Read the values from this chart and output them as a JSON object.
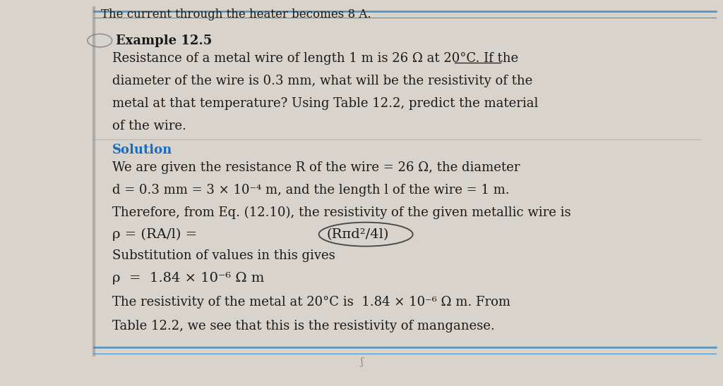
{
  "background_color": "#d8d4cc",
  "top_text": "The current through the heater becomes 8 A.",
  "header_title": "Example 12.5",
  "example_text_lines": [
    "Resistance of a metal wire of length 1 m is 26 Ω at 20°C. If the",
    "diameter of the wire is 0.3 mm, what will be the resistivity of the",
    "metal at that temperature? Using Table 12.2, predict the material",
    "of the wire."
  ],
  "solution_label": "Solution",
  "solution_color": "#1a6bbf",
  "solution_lines": [
    "We are given the resistance R of the wire = 26 Ω, the diameter",
    "d = 0.3 mm = 3 × 10⁻⁴ m, and the length l of the wire = 1 m.",
    "Therefore, from Eq. (12.10), the resistivity of the given metallic wire is"
  ],
  "substitution_line": "Substitution of values in this gives",
  "rho_result": "ρ  =  1.84 × 10⁻⁶ Ω m",
  "conclusion_lines": [
    "The resistivity of the metal at 20°C is  1.84 × 10⁻⁶ Ω m. From",
    "Table 12.2, we see that this is the resistivity of manganese."
  ],
  "line_color": "#4a90c4",
  "font_size_main": 13,
  "font_size_top": 12
}
